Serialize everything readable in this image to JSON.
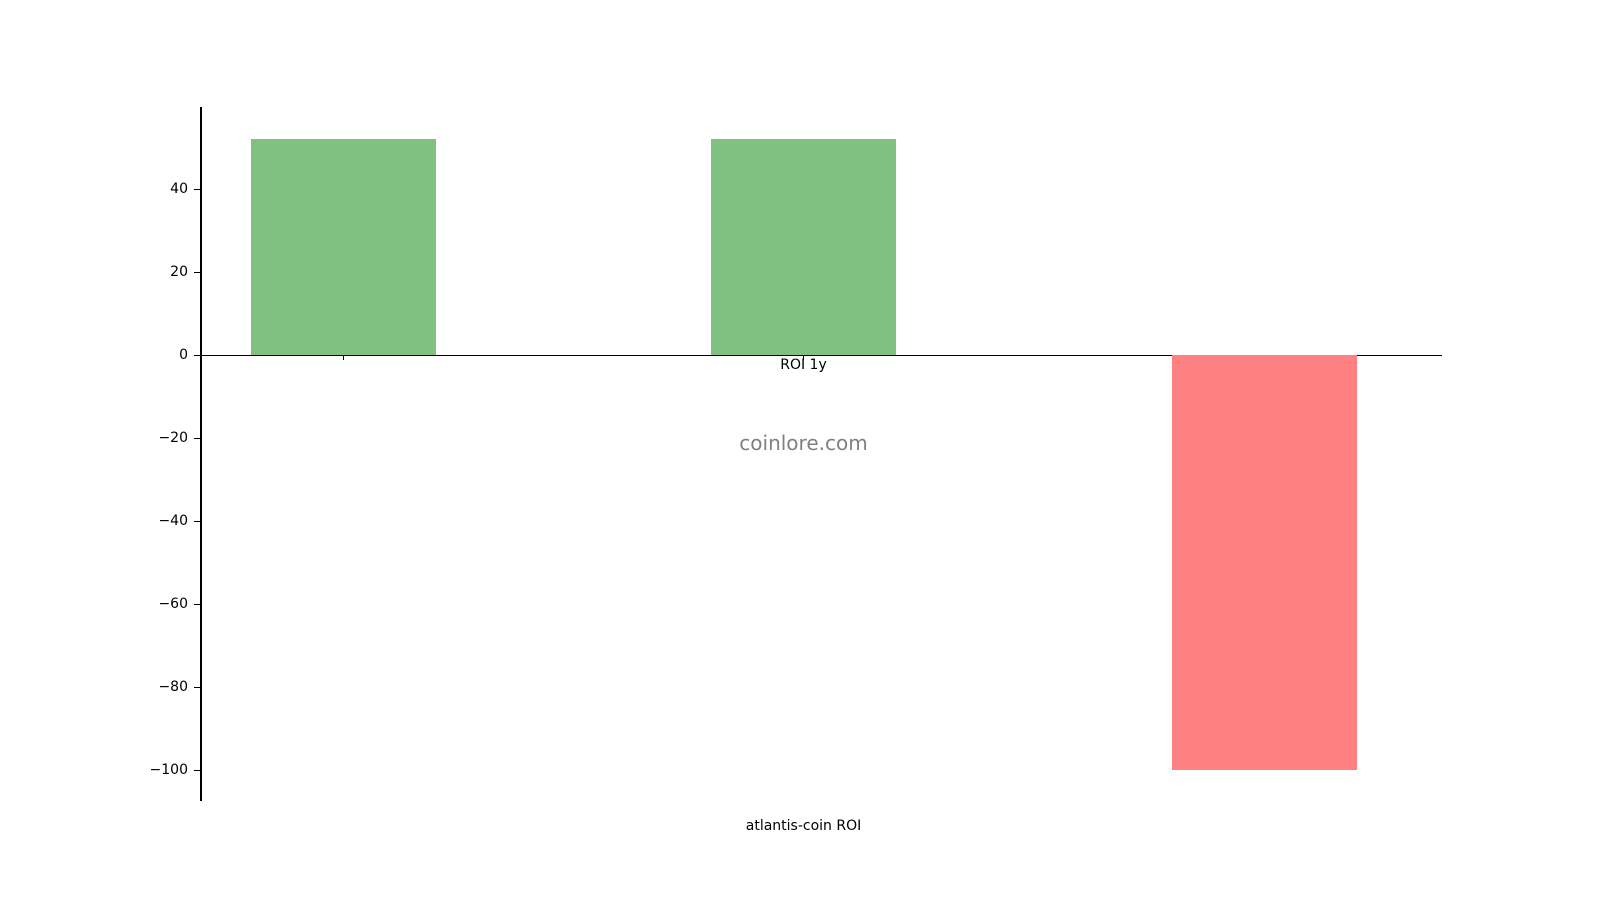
{
  "page": {
    "background_color": "#ffffff"
  },
  "watermark": {
    "text": "coinlore.com",
    "color": "#808080"
  },
  "chart_data": {
    "type": "bar",
    "title": "atlantis-coin ROI",
    "xlabel": "atlantis-coin ROI",
    "ylabel": "",
    "categories": [
      "",
      "ROI 1y",
      ""
    ],
    "values": [
      52,
      52,
      -100
    ],
    "bar_colors": [
      "#80c080",
      "#80c080",
      "#ff8080"
    ],
    "positive_color": "#80c080",
    "negative_color": "#ff8080",
    "yticks": [
      40,
      20,
      0,
      -20,
      -40,
      -60,
      -80,
      -100
    ],
    "ylim": [
      -107.5,
      59.8
    ],
    "grid": false,
    "legend": null,
    "axis_color": "#000000",
    "watermark": "coinlore.com"
  }
}
